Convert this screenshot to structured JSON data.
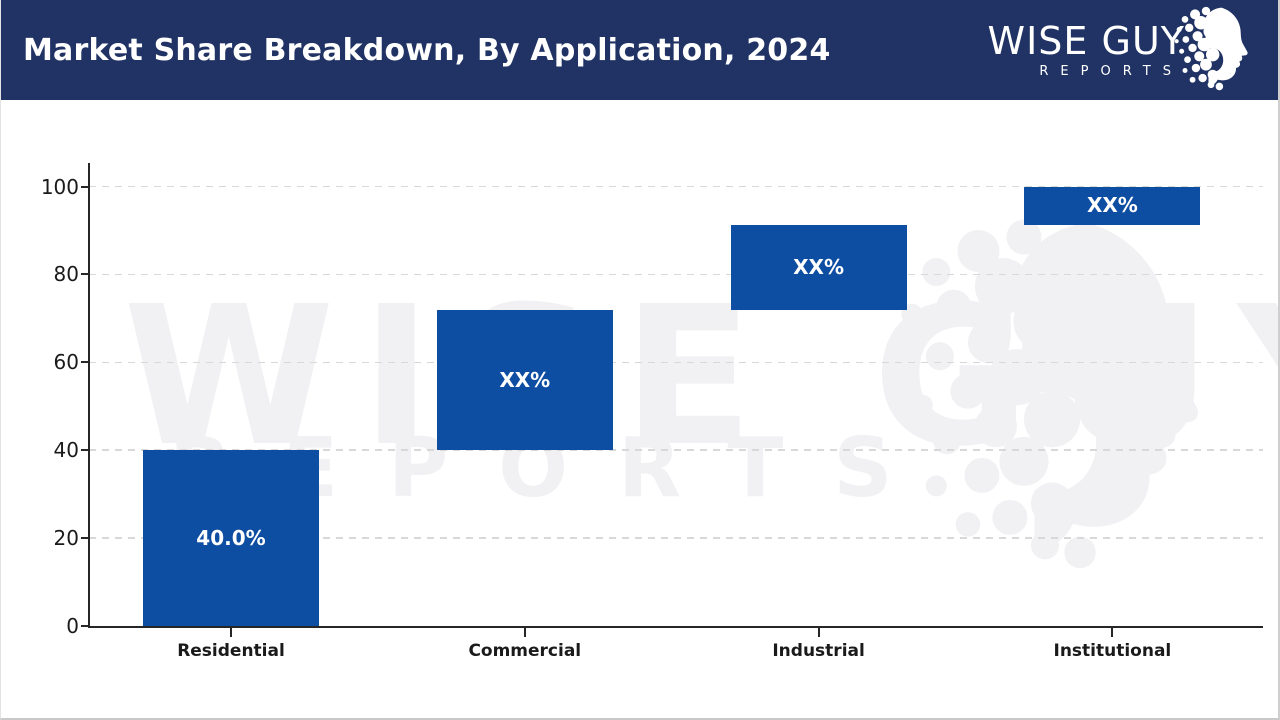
{
  "header": {
    "title": "Market Share Breakdown, By Application, 2024",
    "background": "#203364",
    "logo": {
      "line1": "WISE GUY",
      "line2": "REPORTS"
    }
  },
  "watermark": {
    "line1": "WISE GUY",
    "line2": "REPORTS"
  },
  "chart_data": {
    "type": "bar",
    "subtype": "waterfall",
    "title": "Market Share Breakdown, By Application, 2024",
    "categories": [
      "Residential",
      "Commercial",
      "Industrial",
      "Institutional"
    ],
    "series": [
      {
        "name": "Market Share (%)",
        "starts": [
          0,
          40.0,
          71.8,
          91.3
        ],
        "values": [
          40.0,
          31.8,
          19.5,
          8.7
        ]
      }
    ],
    "cumulative": [
      40.0,
      71.8,
      91.3,
      100.0
    ],
    "bar_labels": [
      "40.0%",
      "XX%",
      "XX%",
      "XX%"
    ],
    "xlabel": "",
    "ylabel": "",
    "ylim": [
      0,
      100
    ],
    "yticks": [
      0,
      20,
      40,
      60,
      80,
      100
    ],
    "grid": "horizontal-dashed",
    "legend": "none",
    "bar_color": "#0d4da2",
    "label_color": "#ffffff",
    "axis_color": "#262626",
    "grid_color": "#d8d8d8"
  }
}
